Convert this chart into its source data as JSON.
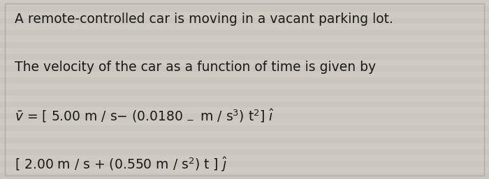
{
  "background_color": "#cdc9c1",
  "text_color": "#1a1a1a",
  "line1": "A remote-controlled car is moving in a vacant parking lot.",
  "line2": "The velocity of the car as a function of time is given by",
  "fontsize": 13.5,
  "figsize": [
    7.0,
    2.57
  ],
  "dpi": 100,
  "border_color": "#b0aca4",
  "stripe_color": "#c8c4bc",
  "stripe_color2": "#d2cec6"
}
